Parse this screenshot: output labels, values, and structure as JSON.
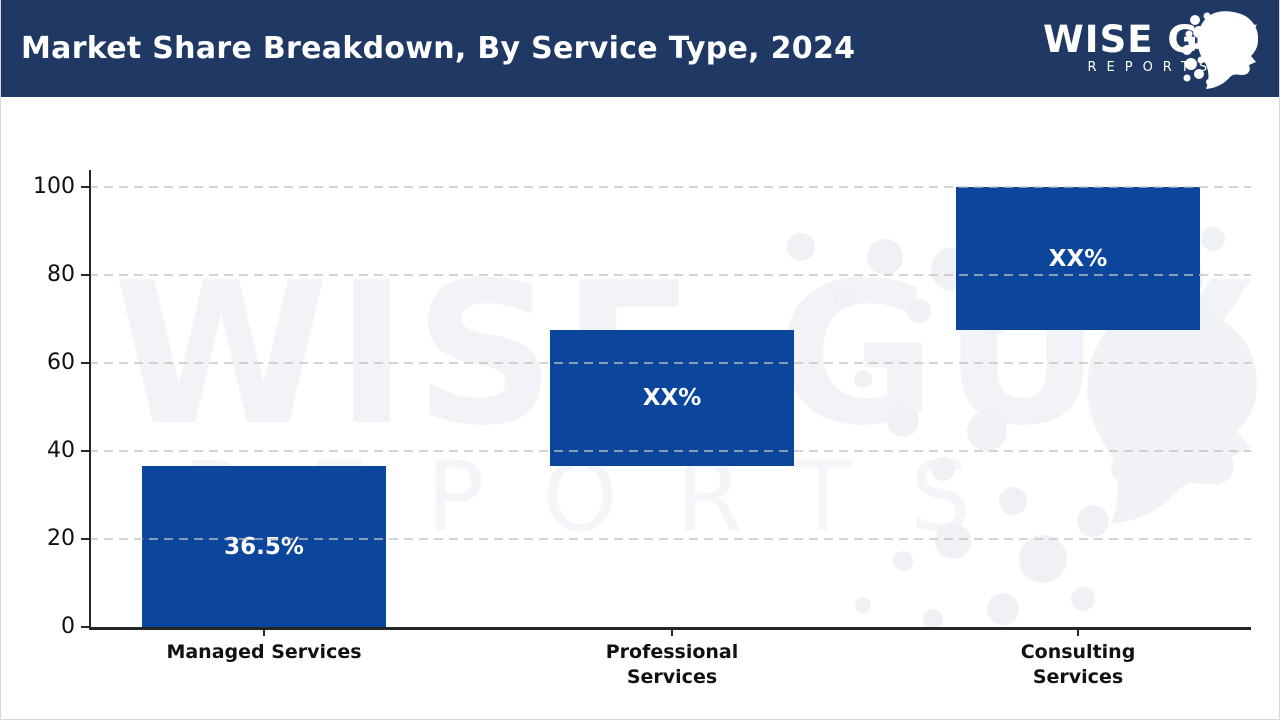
{
  "header": {
    "title": "Market Share Breakdown, By Service Type, 2024",
    "bg_color": "#1f3864",
    "logo": {
      "line1": "WISE GUY",
      "line2": "REPORTS",
      "face_icon": "dotted-head-profile"
    }
  },
  "watermark": {
    "line1": "WISE GUY",
    "line2": "REPORTS"
  },
  "chart_data": {
    "type": "bar",
    "subtype": "floating-waterfall",
    "title": "Market Share Breakdown, By Service Type, 2024",
    "categories": [
      "Managed Services",
      "Professional Services",
      "Consulting Services"
    ],
    "categories_display": [
      "Managed Services",
      "Professional\nServices",
      "Consulting\nServices"
    ],
    "segments": [
      {
        "category": "Managed Services",
        "start": 0,
        "end": 36.5,
        "label": "36.5%"
      },
      {
        "category": "Professional Services",
        "start": 36.5,
        "end": 67.5,
        "label": "XX%"
      },
      {
        "category": "Consulting Services",
        "start": 67.5,
        "end": 100,
        "label": "XX%"
      }
    ],
    "ylim": [
      0,
      100
    ],
    "yticks": [
      0,
      20,
      40,
      60,
      80,
      100
    ],
    "xlabel": "",
    "ylabel": "",
    "grid": "horizontal-dashed",
    "legend": false,
    "bar_color": "#0b459c",
    "bar_label_color": "#ffffff",
    "axis_color": "#262626",
    "gridline_color": "#c2c2c2"
  }
}
